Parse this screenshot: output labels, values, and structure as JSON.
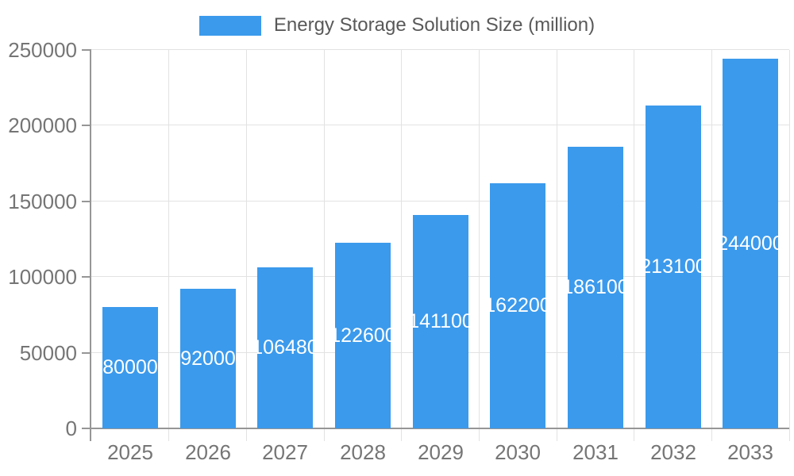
{
  "chart_data": {
    "type": "bar",
    "title": "Energy Storage Solution Size (million)",
    "legend_position": "top-center",
    "categories": [
      "2025",
      "2026",
      "2027",
      "2028",
      "2029",
      "2030",
      "2031",
      "2032",
      "2033"
    ],
    "values": [
      80000,
      92000,
      106480,
      122600,
      141100,
      162200,
      186100,
      213100,
      244000
    ],
    "y_ticks": [
      0,
      50000,
      100000,
      150000,
      200000,
      250000
    ],
    "ylim": [
      0,
      250000
    ],
    "xlabel": "",
    "ylabel": "",
    "grid": true,
    "value_labels": "inside-center-white",
    "colors": {
      "bar": "#3B9AEC",
      "grid": "#E2E2E2",
      "axis": "#969696",
      "axis_label": "#757575",
      "title": "#595959",
      "value_label": "#FFFFFF",
      "background": "#FFFFFF"
    }
  }
}
